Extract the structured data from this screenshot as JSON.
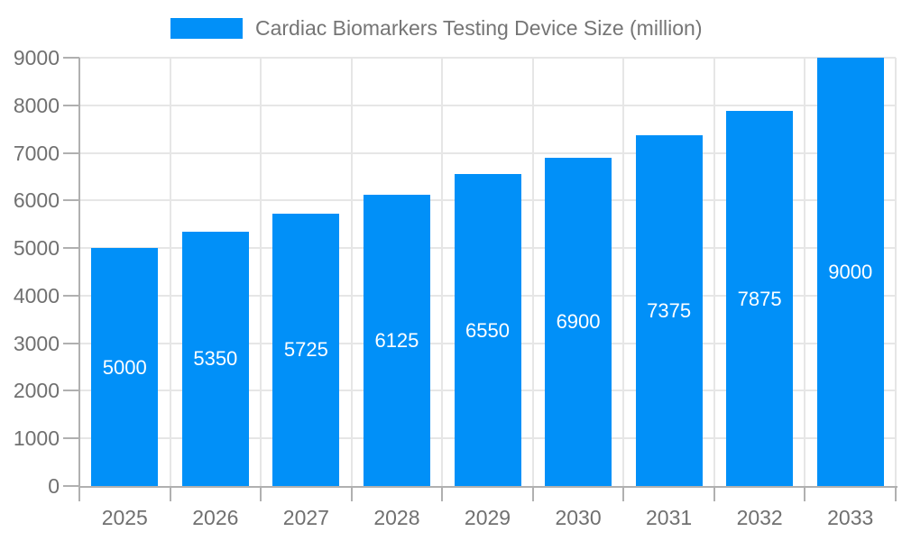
{
  "legend": {
    "label": "Cardiac Biomarkers Testing Device Size (million)",
    "swatch_color": "#0190f8"
  },
  "chart_data": {
    "type": "bar",
    "title": "Cardiac Biomarkers Testing Device Size (million)",
    "categories": [
      "2025",
      "2026",
      "2027",
      "2028",
      "2029",
      "2030",
      "2031",
      "2032",
      "2033"
    ],
    "values": [
      5000,
      5350,
      5725,
      6125,
      6550,
      6900,
      7375,
      7875,
      9000
    ],
    "value_labels": [
      "5000",
      "5350",
      "5725",
      "6125",
      "6550",
      "6900",
      "7375",
      "7875",
      "9000"
    ],
    "xlabel": "",
    "ylabel": "",
    "ylim": [
      0,
      9000
    ],
    "ytick_step": 1000,
    "yticks": [
      0,
      1000,
      2000,
      3000,
      4000,
      5000,
      6000,
      7000,
      8000,
      9000
    ],
    "grid": true,
    "legend_position": "top",
    "bar_color": "#0190f8",
    "value_label_color": "#ffffff"
  },
  "colors": {
    "bar": "#0190f8",
    "axis": "#b0b0b0",
    "grid": "#e6e6e6",
    "text": "#707070",
    "title_text": "#757575",
    "value_text": "#ffffff",
    "background": "#ffffff"
  }
}
